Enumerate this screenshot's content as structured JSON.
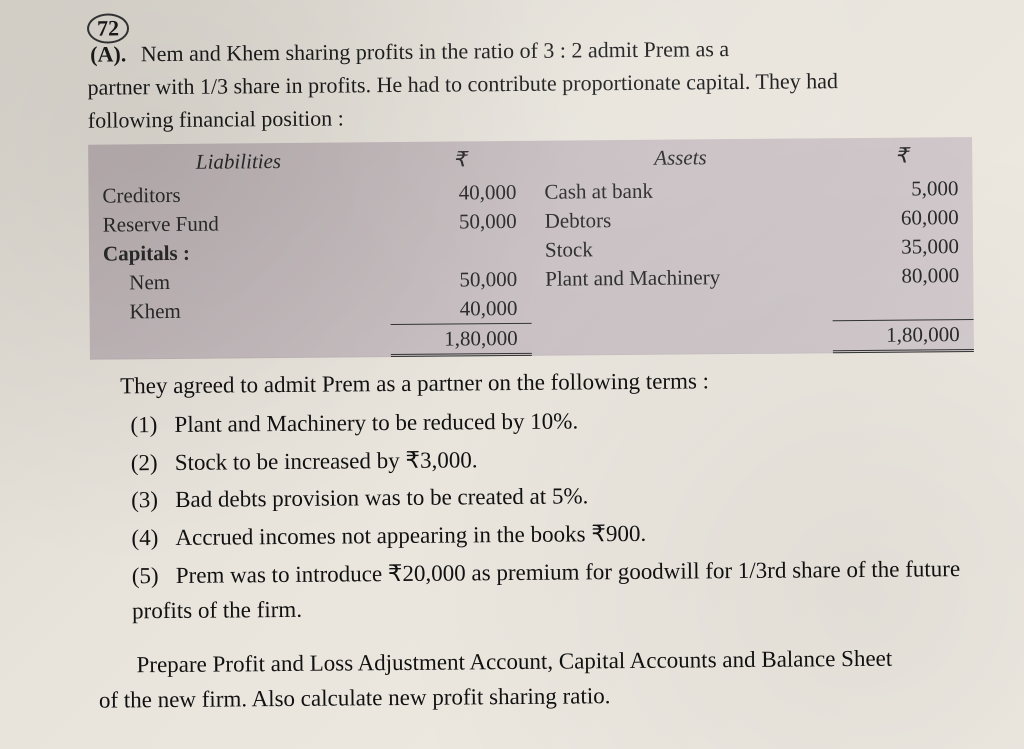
{
  "question": {
    "number": "72 (A).",
    "intro_l1_a": "Nem and Khem sharing profits in the ratio of 3 : 2 admit Prem as a",
    "intro_l2": "partner with 1/3 share in profits. He had to contribute proportionate capital. They had",
    "intro_l3": "following financial position :"
  },
  "balance_sheet": {
    "headers": {
      "liabilities": "Liabilities",
      "rs_left": "₹",
      "assets": "Assets",
      "rs_right": "₹"
    },
    "liabilities": [
      {
        "label": "Creditors",
        "amount": "40,000",
        "indent": false,
        "section": false
      },
      {
        "label": "Reserve Fund",
        "amount": "50,000",
        "indent": false,
        "section": false
      },
      {
        "label": "Capitals :",
        "amount": "",
        "indent": false,
        "section": true
      },
      {
        "label": "Nem",
        "amount": "50,000",
        "indent": true,
        "section": false
      },
      {
        "label": "Khem",
        "amount": "40,000",
        "indent": true,
        "section": false
      }
    ],
    "assets": [
      {
        "label": "Cash at bank",
        "amount": "5,000"
      },
      {
        "label": "Debtors",
        "amount": "60,000"
      },
      {
        "label": "Stock",
        "amount": "35,000"
      },
      {
        "label": "Plant and Machinery",
        "amount": "80,000"
      },
      {
        "label": "",
        "amount": ""
      }
    ],
    "totals": {
      "liab": "1,80,000",
      "assets": "1,80,000"
    }
  },
  "terms": {
    "intro": "They agreed to admit Prem as a partner on the following terms :",
    "items": [
      {
        "n": "(1)",
        "text": "Plant and Machinery to be reduced by 10%."
      },
      {
        "n": "(2)",
        "text": "Stock to be increased by ₹3,000."
      },
      {
        "n": "(3)",
        "text": "Bad debts provision was to be created at 5%."
      },
      {
        "n": "(4)",
        "text": "Accrued incomes not appearing in the books ₹900."
      },
      {
        "n": "(5)",
        "text": "Prem was to introduce ₹20,000 as premium for goodwill for 1/3rd share of the future profits of the firm."
      }
    ]
  },
  "closing": {
    "l1": "Prepare Profit and Loss Adjustment Account, Capital Accounts and Balance Sheet",
    "l2": "of the new firm. Also calculate new profit sharing ratio."
  }
}
